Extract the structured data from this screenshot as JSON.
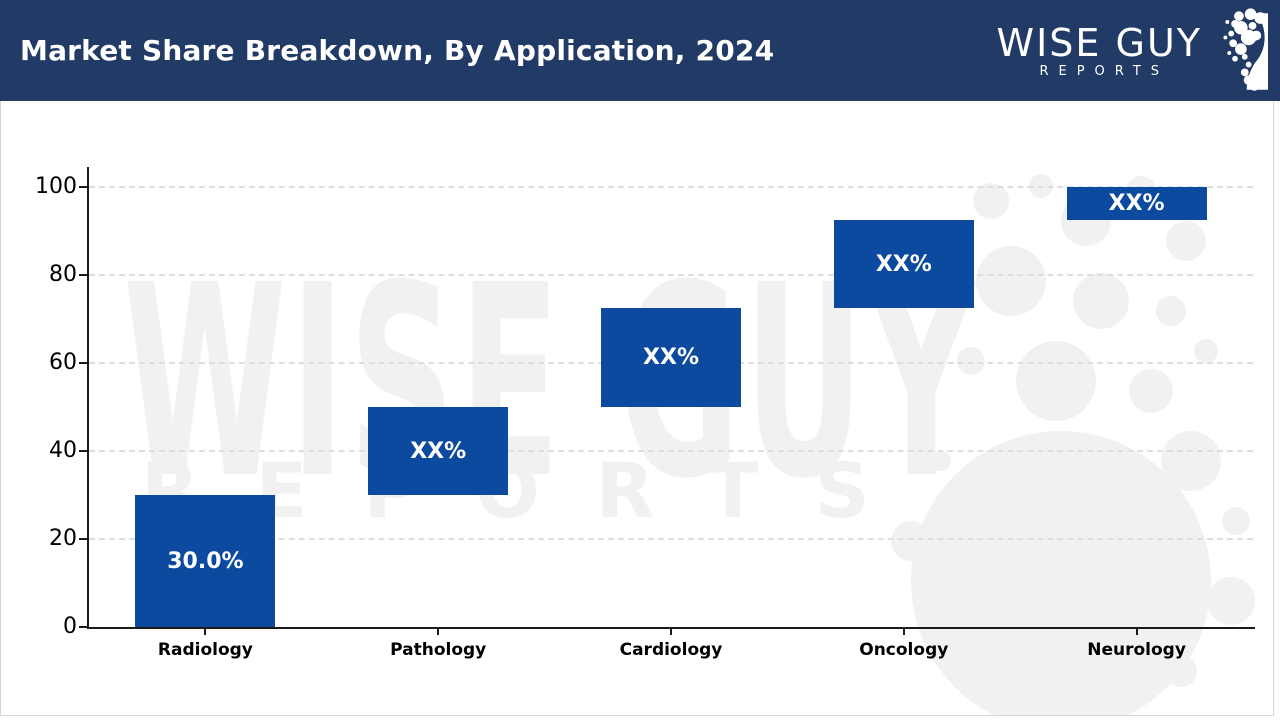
{
  "header": {
    "title": "Market Share Breakdown, By Application, 2024",
    "bg_color": "#213a66"
  },
  "logo": {
    "line1": "WISE GUY",
    "line2": "REPORTS"
  },
  "watermark": {
    "line1": "WISE GUY",
    "line2": "REPORTS"
  },
  "chart_data": {
    "type": "bar",
    "subtype": "waterfall",
    "title": "Market Share Breakdown, By Application, 2024",
    "categories": [
      "Radiology",
      "Pathology",
      "Cardiology",
      "Oncology",
      "Neurology"
    ],
    "starts": [
      0,
      30,
      50,
      72.5,
      92.5
    ],
    "values": [
      30,
      20,
      22.5,
      20,
      7.5
    ],
    "bar_labels": [
      "30.0%",
      "XX%",
      "XX%",
      "XX%",
      "XX%"
    ],
    "y_ticks": [
      0,
      20,
      40,
      60,
      80,
      100
    ],
    "ylim": [
      0,
      100
    ],
    "xlabel": "",
    "ylabel": "",
    "grid": "horizontal-dashed",
    "legend": "none",
    "bar_color": "#0b4a9f"
  }
}
